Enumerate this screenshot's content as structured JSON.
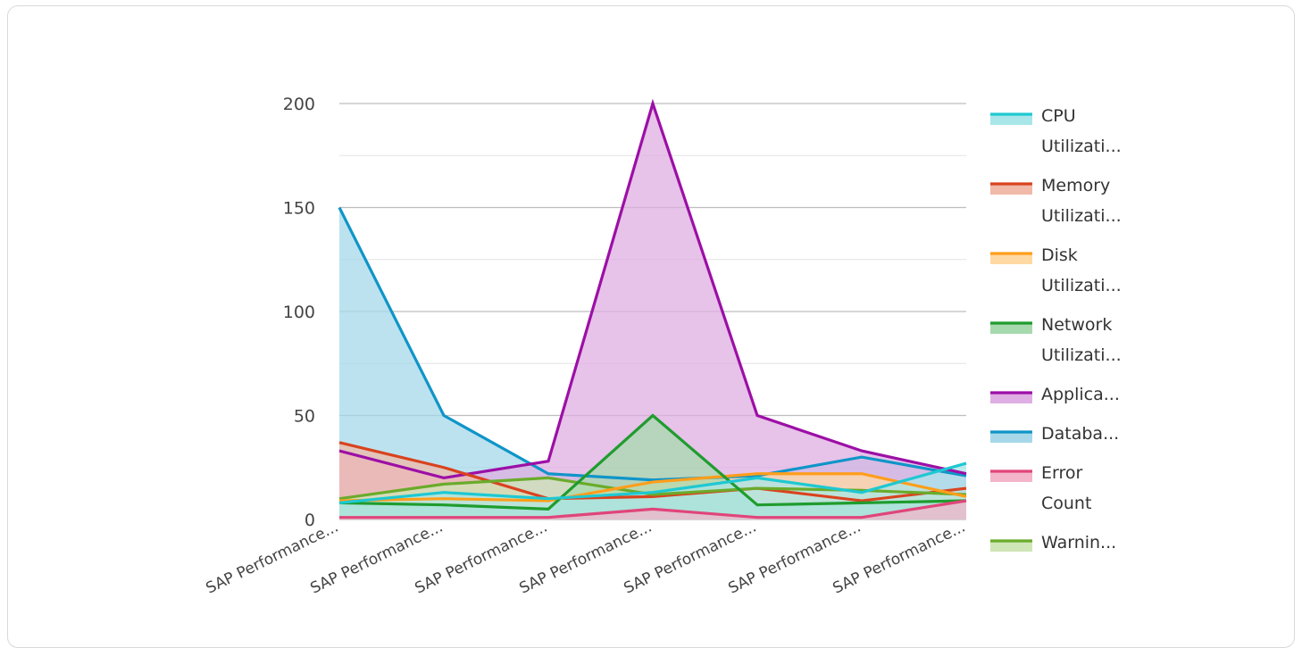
{
  "chart_data": {
    "type": "area",
    "categories": [
      "SAP Performance...",
      "SAP Performance...",
      "SAP Performance...",
      "SAP Performance...",
      "SAP Performance...",
      "SAP Performance...",
      "SAP Performance..."
    ],
    "ylim": [
      0,
      200
    ],
    "yticks": [
      "0",
      "50",
      "100",
      "150",
      "200"
    ],
    "grid": true,
    "legend_position": "right",
    "series": [
      {
        "name": "CPU Utilizati...",
        "legend_lines": [
          "CPU",
          "Utilizati..."
        ],
        "color": "#1ec8d2",
        "fill": "#a8e6ea",
        "values": [
          8,
          13,
          10,
          13,
          20,
          13,
          27
        ]
      },
      {
        "name": "Memory Utilizati...",
        "legend_lines": [
          "Memory",
          "Utilizati..."
        ],
        "color": "#d9431e",
        "fill": "#f0b9a8",
        "values": [
          37,
          25,
          10,
          11,
          15,
          9,
          15
        ]
      },
      {
        "name": "Disk Utilizati...",
        "legend_lines": [
          "Disk",
          "Utilizati..."
        ],
        "color": "#ff9e1b",
        "fill": "#ffd9a3",
        "values": [
          9,
          10,
          9,
          18,
          22,
          22,
          11
        ]
      },
      {
        "name": "Network Utilizati...",
        "legend_lines": [
          "Network",
          "Utilizati..."
        ],
        "color": "#1f9c2e",
        "fill": "#a7d9ae",
        "values": [
          8,
          7,
          5,
          50,
          7,
          8,
          9
        ]
      },
      {
        "name": "Applica...",
        "legend_lines": [
          "Applica..."
        ],
        "color": "#9c0fa6",
        "fill": "#dfaee2",
        "values": [
          33,
          20,
          28,
          200,
          50,
          33,
          22
        ]
      },
      {
        "name": "Databa...",
        "legend_lines": [
          "Databa..."
        ],
        "color": "#0f95c8",
        "fill": "#a6d8ea",
        "values": [
          150,
          50,
          22,
          19,
          21,
          30,
          21
        ]
      },
      {
        "name": "Error Count",
        "legend_lines": [
          "Error",
          "Count"
        ],
        "color": "#e0457a",
        "fill": "#f4b4ca",
        "values": [
          1,
          1,
          1,
          5,
          1,
          1,
          9
        ]
      },
      {
        "name": "Warnin...",
        "legend_lines": [
          "Warnin..."
        ],
        "color": "#6aab2b",
        "fill": "#cfe6b6",
        "values": [
          10,
          17,
          20,
          12,
          15,
          14,
          12
        ]
      }
    ]
  }
}
